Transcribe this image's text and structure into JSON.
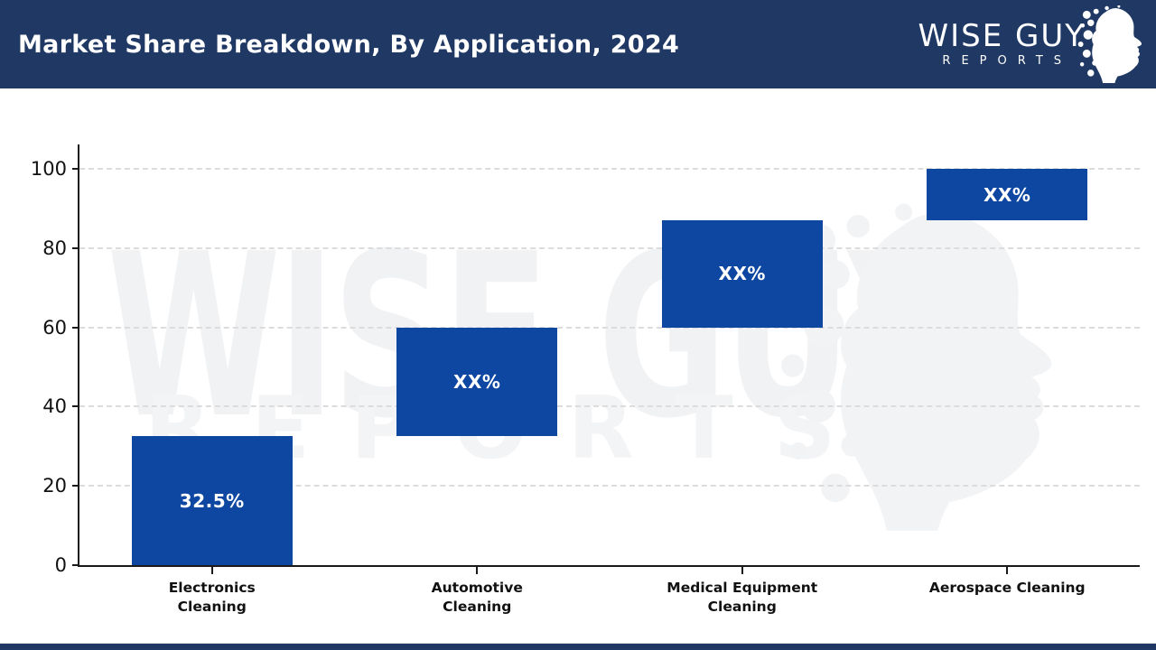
{
  "header": {
    "title": "Market Share Breakdown, By Application, 2024",
    "logo": {
      "line1": "WISE GUY",
      "line2": "REPORTS",
      "icon": "dotted-head-profile-icon"
    }
  },
  "watermark": {
    "line1": "WISE GUY",
    "line2": "R E P O R T S",
    "icon": "dotted-head-profile-icon"
  },
  "colors": {
    "header_bg": "#1f3864",
    "footer_bg": "#1f3864",
    "chart_bg": "#ffffff",
    "bar_color": "#0d47a1",
    "bar_label_color": "#ffffff",
    "gridline_color": "#dcdcdc",
    "axis_color": "#1a1a1a",
    "watermark_color": "#f1f2f4"
  },
  "chart_data": {
    "type": "bar",
    "subtype": "waterfall",
    "title": "Market Share Breakdown, By Application, 2024",
    "categories": [
      "Electronics Cleaning",
      "Automotive Cleaning",
      "Medical Equipment Cleaning",
      "Aerospace Cleaning"
    ],
    "category_lines": [
      [
        "Electronics",
        "Cleaning"
      ],
      [
        "Automotive",
        "Cleaning"
      ],
      [
        "Medical Equipment",
        "Cleaning"
      ],
      [
        "Aerospace Cleaning"
      ]
    ],
    "segments": [
      {
        "category": "Electronics Cleaning",
        "label": "32.5%",
        "start": 0,
        "end": 32.5
      },
      {
        "category": "Automotive Cleaning",
        "label": "XX%",
        "start": 32.5,
        "end": 60
      },
      {
        "category": "Medical Equipment Cleaning",
        "label": "XX%",
        "start": 60,
        "end": 87
      },
      {
        "category": "Aerospace Cleaning",
        "label": "XX%",
        "start": 87,
        "end": 100
      }
    ],
    "xlabel": "",
    "ylabel": "",
    "ylim": [
      0,
      100
    ],
    "yticks": [
      0,
      20,
      40,
      60,
      80,
      100
    ],
    "grid": {
      "horizontal": true,
      "style": "dashed",
      "vertical": false
    },
    "legend": "none"
  }
}
